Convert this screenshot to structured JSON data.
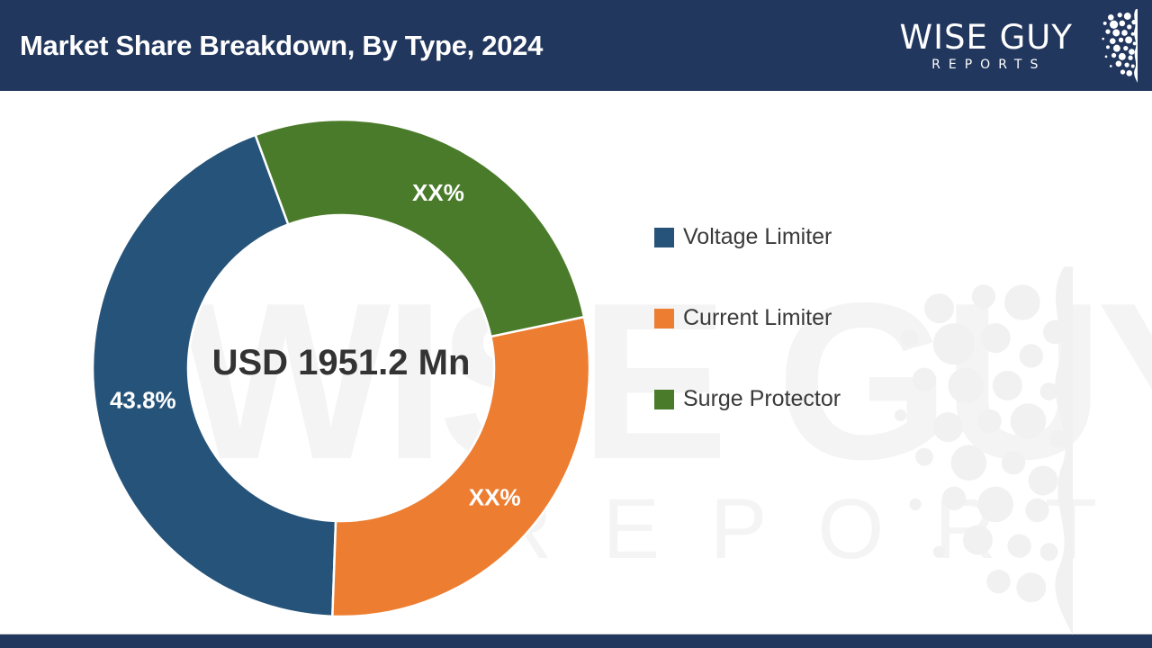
{
  "header": {
    "title": "Market Share Breakdown, By Type, 2024",
    "logo": {
      "line1": "WISE GUY",
      "line2": "REPORTS"
    }
  },
  "watermark": {
    "line1": "WISE GUY",
    "line2": "REPORTS"
  },
  "colors": {
    "header_navy": "#22375E",
    "footer_navy": "#22375E",
    "background": "#ffffff",
    "center_text": "#333333",
    "legend_text": "#3a3a3a",
    "watermark_gray": "#f4f4f4"
  },
  "chart_data": {
    "type": "pie",
    "subtype": "donut",
    "title": "Market Share Breakdown, By Type, 2024",
    "center_label": "USD 1951.2 Mn",
    "legend_position": "right",
    "slices": [
      {
        "label": "Voltage Limiter",
        "value_label": "43.8%",
        "share_pct": 43.8,
        "color": "#265379",
        "start_deg": 268,
        "end_deg": 110.2
      },
      {
        "label": "Current Limiter",
        "value_label": "XX%",
        "share_pct": 28.9,
        "color": "#ED7D31",
        "start_deg": 11.9,
        "end_deg": -92
      },
      {
        "label": "Surge Protector",
        "value_label": "XX%",
        "share_pct": 27.3,
        "color": "#4A7B2A",
        "start_deg": 110.2,
        "end_deg": 11.9
      }
    ]
  }
}
